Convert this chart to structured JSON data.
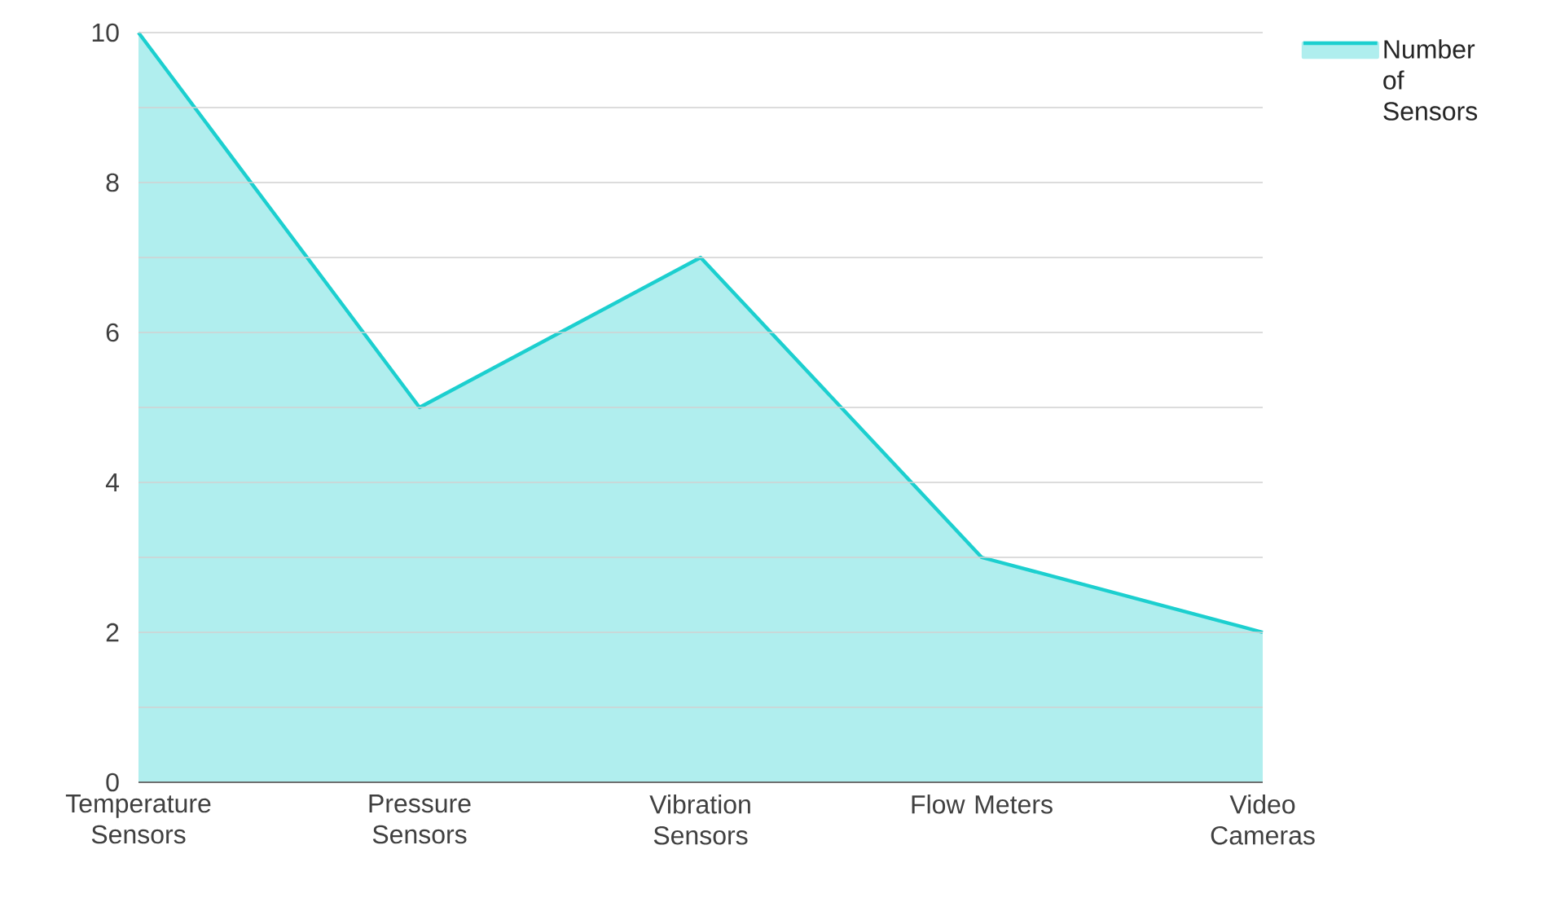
{
  "chart_data": {
    "type": "area",
    "categories": [
      "Temperature Sensors",
      "Pressure Sensors",
      "Vibration Sensors",
      "Flow Meters",
      "Video Cameras"
    ],
    "series": [
      {
        "name": "Number of Sensors",
        "color": "#1ccfcf",
        "values": [
          10,
          5,
          7,
          3,
          2
        ]
      }
    ],
    "ylim": [
      0,
      10
    ],
    "yticks": [
      0,
      {
        "value": 1,
        "label": null
      },
      2,
      {
        "value": 3,
        "label": null
      },
      4,
      {
        "value": 5,
        "label": null
      },
      6,
      {
        "value": 7,
        "label": null
      },
      8,
      {
        "value": 9,
        "label": null
      },
      10
    ],
    "grid": "y",
    "legend": "top right"
  }
}
